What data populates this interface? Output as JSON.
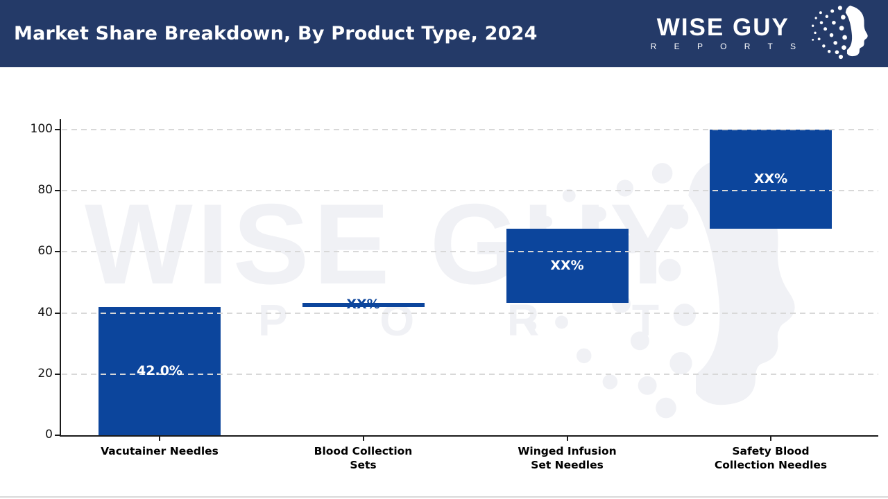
{
  "header": {
    "title": "Market Share Breakdown, By Product Type, 2024",
    "logo": {
      "line1": "WISE GUY",
      "line2": "R E P O R T S"
    }
  },
  "watermark": {
    "line1": "WISE GUY",
    "line2": "P O R T S"
  },
  "chart_data": {
    "type": "bar",
    "subtype": "waterfall",
    "title": "Market Share Breakdown, By Product Type, 2024",
    "categories": [
      "Vacutainer Needles",
      "Blood Collection Sets",
      "Winged Infusion Set Needles",
      "Safety Blood Collection Needles"
    ],
    "category_lines": [
      [
        "Vacutainer Needles"
      ],
      [
        "Blood Collection",
        "Sets"
      ],
      [
        "Winged Infusion",
        "Set Needles"
      ],
      [
        "Safety Blood",
        "Collection Needles"
      ]
    ],
    "segments": [
      {
        "category": "Vacutainer Needles",
        "start": 0,
        "end": 42.0,
        "value_label": "42.0%"
      },
      {
        "category": "Blood Collection Sets",
        "start": 42.0,
        "end": 43.3,
        "value_label": "XX%",
        "label_color": "#0C459C"
      },
      {
        "category": "Winged Infusion Set Needles",
        "start": 43.3,
        "end": 67.6,
        "value_label": "XX%"
      },
      {
        "category": "Safety Blood Collection Needles",
        "start": 67.6,
        "end": 100.0,
        "value_label": "XX%"
      }
    ],
    "y_ticks": [
      0,
      20,
      40,
      60,
      80,
      100
    ],
    "ylim": [
      0,
      103.2
    ],
    "xlabel": "",
    "ylabel": "",
    "grid": "horizontal-dashed-over-bars",
    "legend": "none",
    "bar_color": "#0C459C",
    "label_color": "#ffffff",
    "axis_color": "#1a1a1a",
    "grid_color": "#d8d8d8",
    "header_bg": "#243A68",
    "watermark_color": "#f0f1f5"
  }
}
